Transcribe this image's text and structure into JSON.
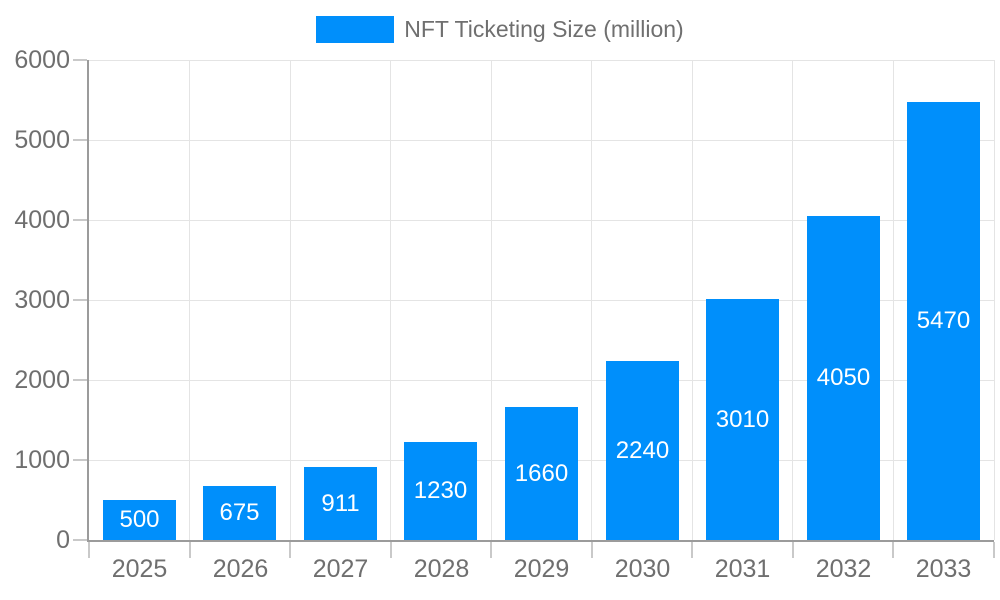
{
  "legend": {
    "label": "NFT Ticketing Size (million)",
    "swatch_color": "#008FFB"
  },
  "chart_data": {
    "type": "bar",
    "title": "NFT Ticketing Size (million)",
    "categories": [
      "2025",
      "2026",
      "2027",
      "2028",
      "2029",
      "2030",
      "2031",
      "2032",
      "2033"
    ],
    "values": [
      500,
      675,
      911,
      1230,
      1660,
      2240,
      3010,
      4050,
      5470
    ],
    "series_name": "NFT Ticketing Size (million)",
    "xlabel": "",
    "ylabel": "",
    "ylim": [
      0,
      6000
    ],
    "ytick_step": 1000,
    "ytick_labels": [
      "0",
      "1000",
      "2000",
      "3000",
      "4000",
      "5000",
      "6000"
    ],
    "grid": true,
    "legend_position": "top",
    "value_labels_position": "inside-center",
    "colors": {
      "bar": "#008FFB",
      "gridline": "#e4e4e4",
      "axis_line": "#9b9b9b",
      "tick": "#c9c9c9",
      "axis_text": "#6f6f6f",
      "value_text": "#ffffff",
      "legend_text": "#6f6f6f",
      "background": "#ffffff"
    }
  }
}
